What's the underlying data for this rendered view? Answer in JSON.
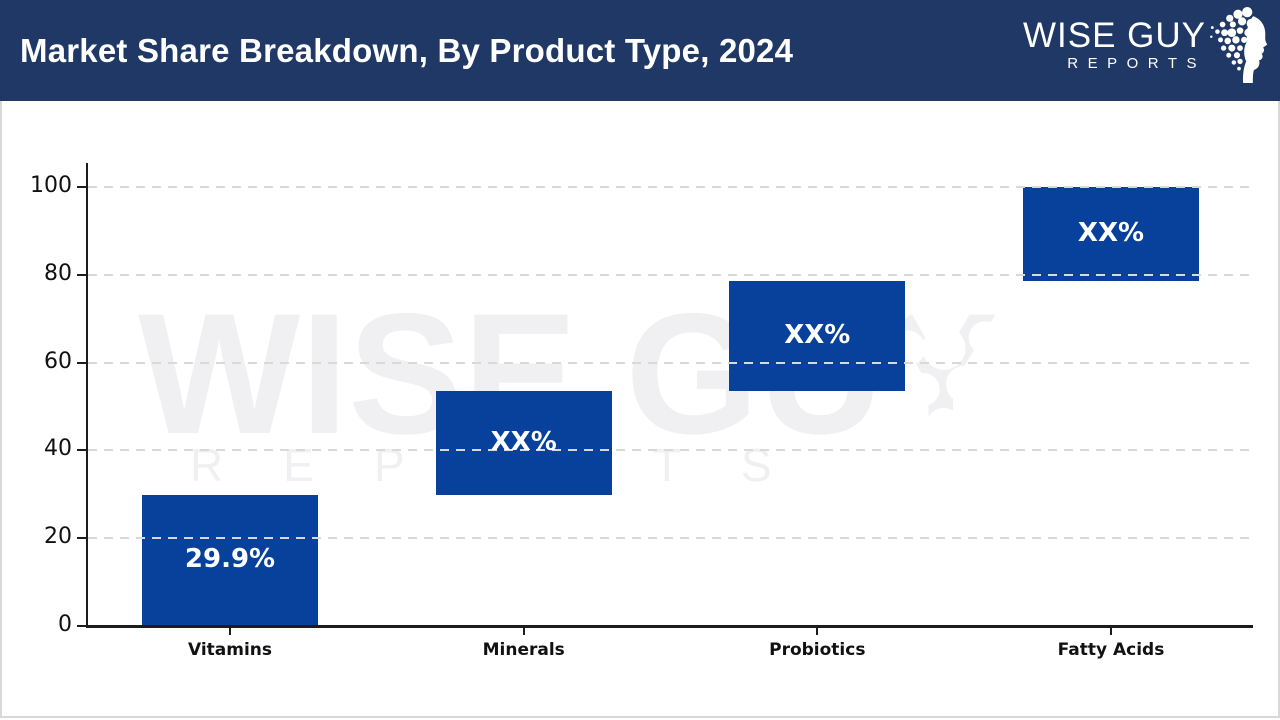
{
  "header": {
    "title": "Market Share Breakdown, By Product Type, 2024",
    "logo": {
      "brand": "WISE GUY",
      "sub": "REPORTS"
    }
  },
  "watermark": {
    "brand": "WISE GUY",
    "sub": "REPORTS"
  },
  "colors": {
    "header_bg": "#1f3865",
    "bar": "#07419c",
    "grid": "#d9d9d9",
    "axis": "#1c1c1c",
    "bar_label": "#ffffff",
    "watermark": "#f0f0f3",
    "frame_border": "#d8d8d8",
    "title_text": "#ffffff",
    "tick_text": "#111111"
  },
  "chart_data": {
    "type": "waterfall",
    "title": "Market Share Breakdown, By Product Type, 2024",
    "categories": [
      "Vitamins",
      "Minerals",
      "Probiotics",
      "Fatty Acids"
    ],
    "segments": [
      {
        "category": "Vitamins",
        "start": 0,
        "end": 29.9,
        "label": "29.9%"
      },
      {
        "category": "Minerals",
        "start": 29.9,
        "end": 53.5,
        "label": "XX%"
      },
      {
        "category": "Probiotics",
        "start": 53.5,
        "end": 78.7,
        "label": "XX%"
      },
      {
        "category": "Fatty Acids",
        "start": 78.7,
        "end": 100,
        "label": "XX%"
      }
    ],
    "ylim": [
      0,
      100
    ],
    "yticks": [
      0,
      20,
      40,
      60,
      80,
      100
    ],
    "xlabel": "",
    "ylabel": "",
    "grid": "horizontal-dashed-over-bars",
    "legend": "none",
    "bar_color": "#07419c",
    "value_label_color": "#ffffff"
  }
}
